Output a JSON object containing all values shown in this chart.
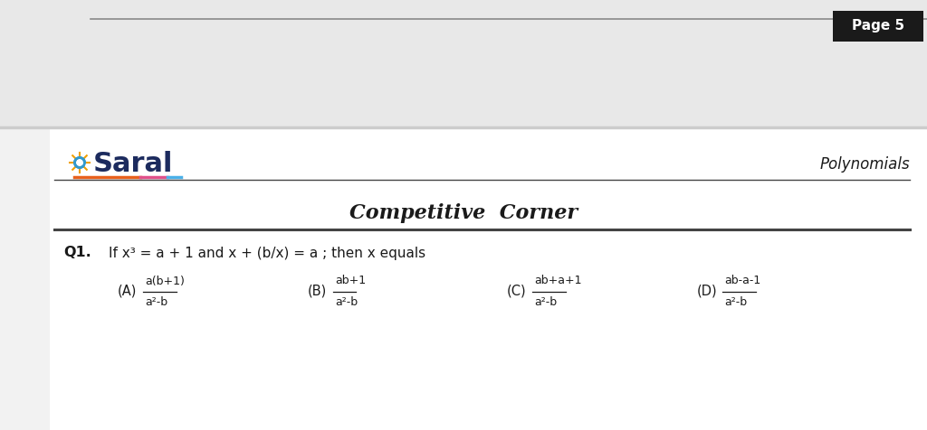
{
  "page_num": "Page 5",
  "brand_name": "Saral",
  "subject": "Polynomials",
  "section_title": "Competitive  Corner",
  "question_label": "Q1.",
  "question_text": "If x³ = a + 1 and x + (b/x) = a ; then x equals",
  "options": [
    {
      "label": "A",
      "numerator": "a(b+1)",
      "denominator": "a²-b"
    },
    {
      "label": "B",
      "numerator": "ab+1",
      "denominator": "a²-b"
    },
    {
      "label": "C",
      "numerator": "ab+a+1",
      "denominator": "a²-b"
    },
    {
      "label": "D",
      "numerator": "ab-a-1",
      "denominator": "a²-b"
    }
  ],
  "bg_top": "#e8e8e8",
  "bg_white_inner": "#ffffff",
  "bg_grey_strip": "#d8d8d8",
  "page_tag_bg": "#1a1a1a",
  "page_tag_text_color": "#ffffff",
  "brand_color_saral": "#1c2b5e",
  "brand_underline_orange": "#e8601c",
  "brand_underline_pink": "#e0508a",
  "brand_underline_blue": "#4ab0e8",
  "text_color": "#1a1a1a",
  "divider_color": "#444444",
  "light_divider": "#aaaaaa"
}
